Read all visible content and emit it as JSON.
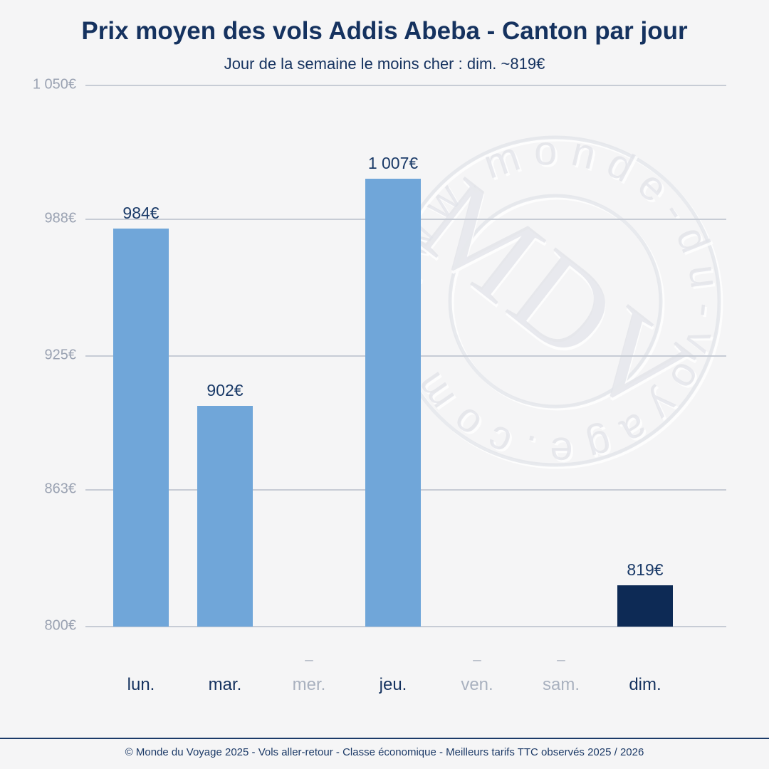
{
  "header": {
    "title": "Prix moyen des vols Addis Abeba - Canton par jour",
    "subtitle": "Jour de la semaine le moins cher : dim. ~819€"
  },
  "chart_data": {
    "type": "bar",
    "title": "Prix moyen des vols Addis Abeba - Canton par jour",
    "subtitle": "Jour de la semaine le moins cher : dim. ~819€",
    "categories": [
      "lun.",
      "mar.",
      "mer.",
      "jeu.",
      "ven.",
      "sam.",
      "dim."
    ],
    "values": [
      984,
      902,
      null,
      1007,
      null,
      null,
      819
    ],
    "value_labels": [
      "984€",
      "902€",
      null,
      "1 007€",
      null,
      null,
      "819€"
    ],
    "empty_marker": "–",
    "currency": "€",
    "ylim": [
      800,
      1050
    ],
    "yticks": [
      {
        "value": 1050,
        "label": "1 050€"
      },
      {
        "value": 988,
        "label": "988€"
      },
      {
        "value": 925,
        "label": "925€"
      },
      {
        "value": 863,
        "label": "863€"
      },
      {
        "value": 800,
        "label": "800€"
      }
    ],
    "grid": true,
    "legend": null,
    "colors": {
      "bar_default": "#70a6d9",
      "bar_highlight": "#0d2a55",
      "highlight_index": 6,
      "grid_line": "#c7ccd5",
      "axis_label": "#9aa2b2",
      "day_active": "#15325f",
      "day_inactive": "#a9b1bf",
      "value_label": "#1a3a68",
      "background": "#f5f5f6"
    }
  },
  "watermark": {
    "ring_text": "www.monde-du-voyage.com · ",
    "center_text": "MDV"
  },
  "footer": {
    "text": "© Monde du Voyage 2025 - Vols aller-retour - Classe économique - Meilleurs tarifs TTC observés 2025 / 2026"
  }
}
